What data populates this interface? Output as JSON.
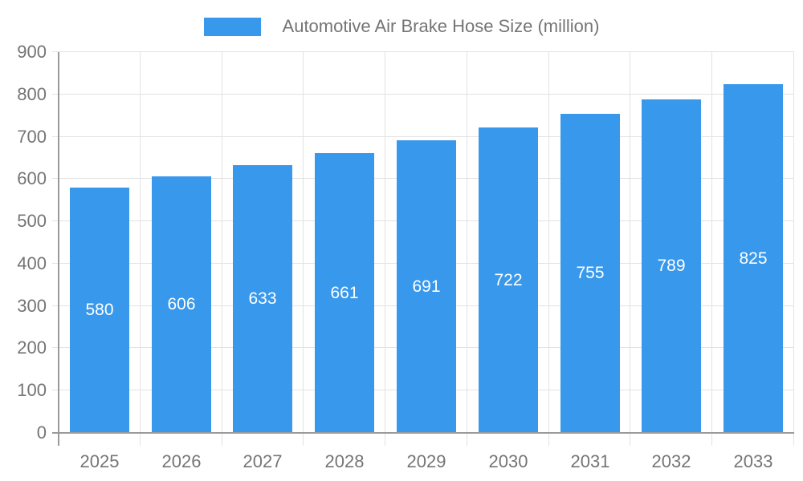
{
  "chart_data": {
    "type": "bar",
    "title": "Automotive Air Brake Hose Size (million)",
    "categories": [
      "2025",
      "2026",
      "2027",
      "2028",
      "2029",
      "2030",
      "2031",
      "2032",
      "2033"
    ],
    "series": [
      {
        "name": "Automotive Air Brake Hose Size (million)",
        "values": [
          580,
          606,
          633,
          661,
          691,
          722,
          755,
          789,
          825
        ]
      }
    ],
    "xlabel": "",
    "ylabel": "",
    "ylim": [
      0,
      900
    ],
    "ytick_step": 100,
    "grid": true,
    "legend_position": "top",
    "value_labels": "inside-center",
    "colors": {
      "bar": "#3898ec",
      "value_label": "#ffffff",
      "axis_label": "#757575",
      "gridline": "#e2e2e2",
      "axis_line": "#9a9a9a",
      "background": "#ffffff"
    }
  }
}
